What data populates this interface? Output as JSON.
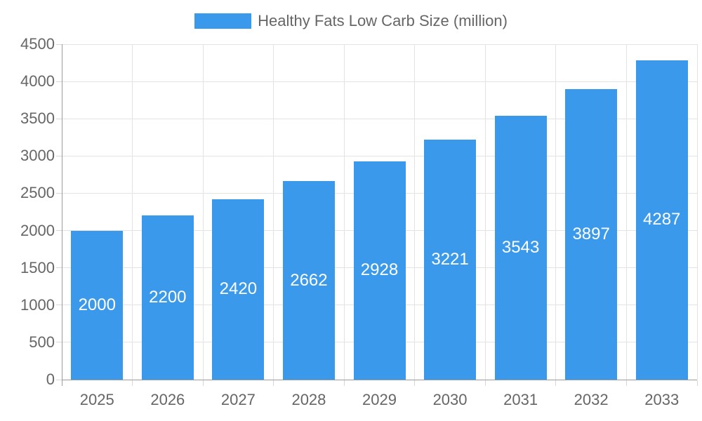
{
  "chart_data": {
    "type": "bar",
    "title": "Healthy Fats Low Carb Size (million)",
    "legend_label": "Healthy Fats Low Carb Size (million)",
    "categories": [
      "2025",
      "2026",
      "2027",
      "2028",
      "2029",
      "2030",
      "2031",
      "2032",
      "2033"
    ],
    "values": [
      2000,
      2200,
      2420,
      2662,
      2928,
      3221,
      3543,
      3897,
      4287
    ],
    "value_labels": [
      "2000",
      "2200",
      "2420",
      "2662",
      "2928",
      "3221",
      "3543",
      "3897",
      "4287"
    ],
    "xlabel": "",
    "ylabel": "",
    "ylim": [
      0,
      4500
    ],
    "ytick_step": 500,
    "ytick_labels": [
      "0",
      "500",
      "1000",
      "1500",
      "2000",
      "2500",
      "3000",
      "3500",
      "4000",
      "4500"
    ],
    "grid": "on",
    "legend_position": "top-center",
    "colors": {
      "bar": "#3b99ec",
      "grid": "#e3e3e3",
      "axis": "#9b9b9b",
      "tick": "#d7d7d7",
      "text": "#666666",
      "value_label": "#ffffff",
      "background": "#ffffff"
    }
  }
}
